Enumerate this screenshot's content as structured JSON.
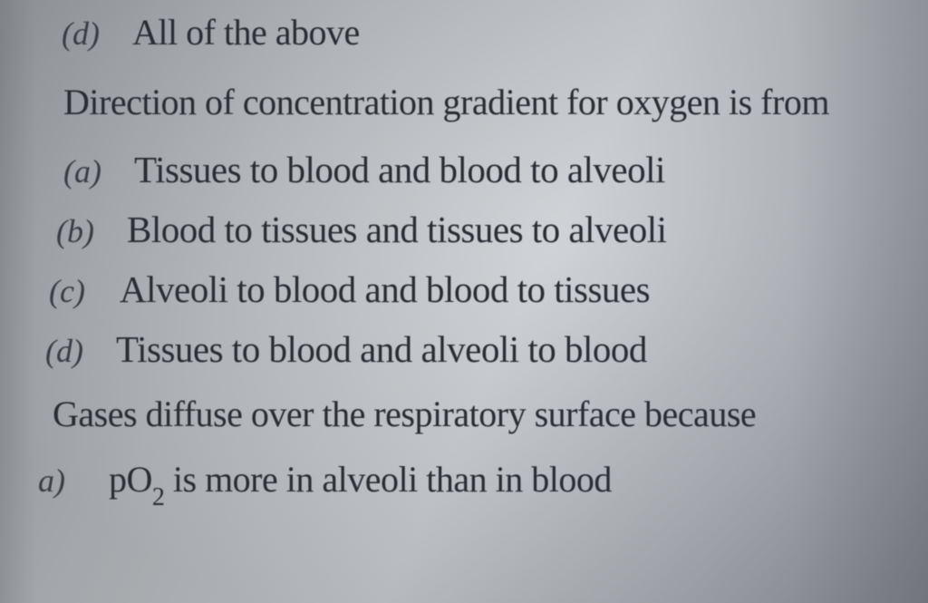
{
  "page": {
    "background_gradient_start": "#9da0a5",
    "background_gradient_end": "#888c92",
    "text_color": "#2a2d33",
    "font_family": "Georgia, Times New Roman, serif",
    "base_fontsize": 40
  },
  "prev_question": {
    "last_option_marker": "(d)",
    "last_option_text": "All of the above"
  },
  "question1": {
    "prompt": "Direction of concentration gradient for oxygen is from",
    "options": [
      {
        "marker": "(a)",
        "text": "Tissues to blood and blood to alveoli"
      },
      {
        "marker": "(b)",
        "text": "Blood to tissues and tissues to alveoli"
      },
      {
        "marker": "(c)",
        "text": "Alveoli to blood and blood to tissues"
      },
      {
        "marker": "(d)",
        "text": "Tissues to blood and alveoli to blood"
      }
    ]
  },
  "question2": {
    "prompt": "Gases diffuse over the respiratory surface because",
    "options": [
      {
        "marker": "a)",
        "text_prefix": "pO",
        "text_sub": "2",
        "text_suffix": " is more in alveoli than in blood"
      }
    ]
  }
}
